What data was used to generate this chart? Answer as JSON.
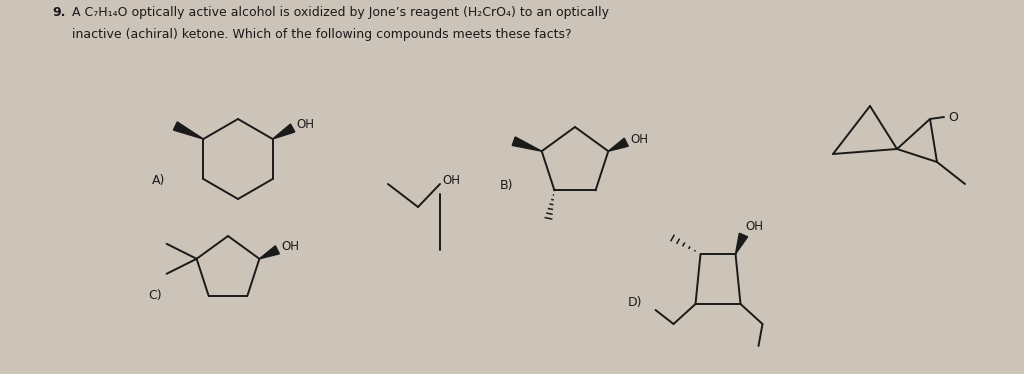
{
  "background_color": "#ccc4b8",
  "text_color": "#1a1a1a",
  "title_line1": "A C₇H₁₄O optically active alcohol is oxidized by Jone’s reagent (H₂CrO₄) to an optically",
  "title_line2": "inactive (achiral) ketone. Which of the following compounds meets these facts?",
  "question_number": "9.",
  "labels": [
    "A)",
    "B)",
    "C)",
    "D)"
  ],
  "figsize": [
    10.24,
    3.74
  ],
  "dpi": 100
}
